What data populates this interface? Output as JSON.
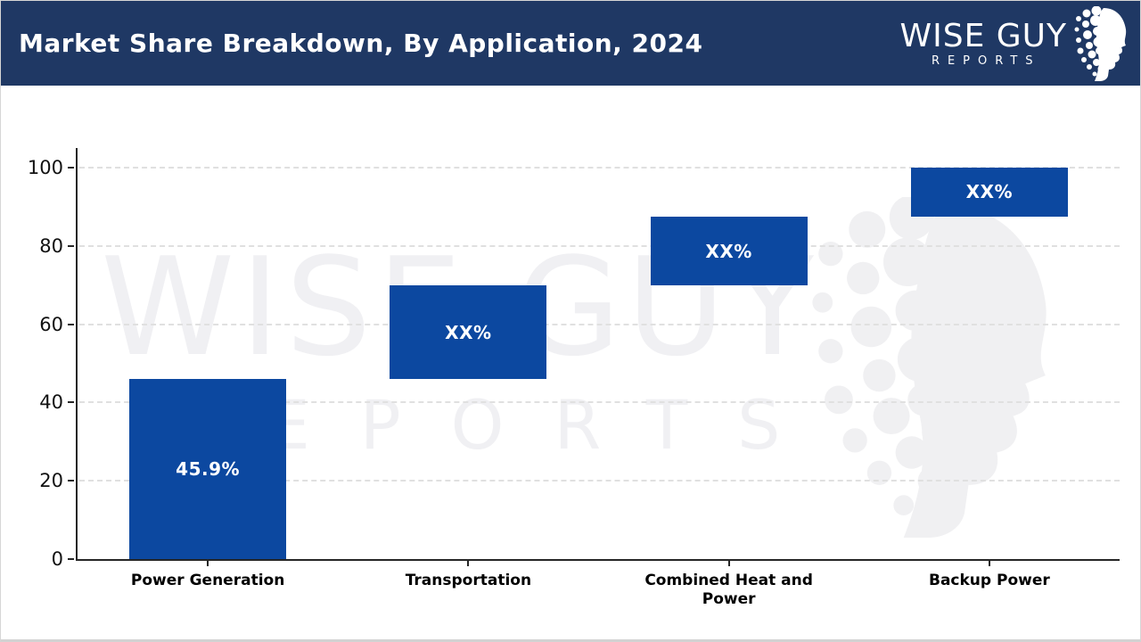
{
  "header": {
    "title": "Market Share Breakdown, By Application, 2024",
    "bg_color": "#1f3864",
    "logo": {
      "line1": "WISE GUY",
      "line2": "REPORTS"
    }
  },
  "watermark": {
    "line1": "WISE GUY",
    "line2": "REPORTS"
  },
  "chart_data": {
    "type": "bar",
    "subtype": "waterfall",
    "title": "Market Share Breakdown, By Application, 2024",
    "categories": [
      "Power Generation",
      "Transportation",
      "Combined Heat and Power",
      "Backup Power"
    ],
    "segments": [
      {
        "category": "Power Generation",
        "start": 0,
        "end": 45.9,
        "label": "45.9%"
      },
      {
        "category": "Transportation",
        "start": 45.9,
        "end": 69.9,
        "label": "XX%"
      },
      {
        "category": "Combined Heat and Power",
        "start": 69.9,
        "end": 87.5,
        "label": "XX%"
      },
      {
        "category": "Backup Power",
        "start": 87.5,
        "end": 100,
        "label": "XX%"
      }
    ],
    "yticks": [
      0,
      20,
      40,
      60,
      80,
      100
    ],
    "ylim": [
      0,
      104
    ],
    "xlabel": "",
    "ylabel": "",
    "bar_color": "#0c48a0",
    "bar_label_color": "#ffffff",
    "grid": "horizontal-dashed",
    "legend_position": "none"
  }
}
